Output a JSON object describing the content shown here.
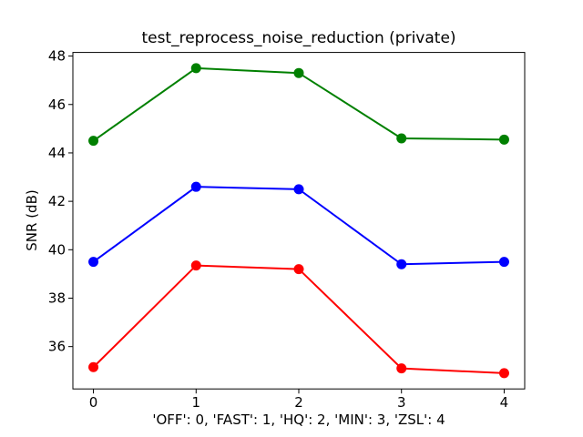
{
  "figure": {
    "background": "#ffffff",
    "frame_color": "#000000"
  },
  "chart_data": {
    "type": "line",
    "title": "test_reprocess_noise_reduction (private)",
    "xlabel": "'OFF': 0, 'FAST': 1, 'HQ': 2, 'MIN': 3, 'ZSL': 4",
    "ylabel": "SNR (dB)",
    "x": [
      0,
      1,
      2,
      3,
      4
    ],
    "x_tick_labels": [
      "0",
      "1",
      "2",
      "3",
      "4"
    ],
    "y_ticks": [
      36,
      38,
      40,
      42,
      44,
      46,
      48
    ],
    "xlim": [
      -0.2,
      4.2
    ],
    "ylim": [
      34.25,
      48.15
    ],
    "grid": false,
    "legend": "none",
    "series": [
      {
        "name": "green",
        "color": "#008000",
        "marker": "o",
        "values": [
          44.5,
          47.5,
          47.3,
          44.6,
          44.55
        ]
      },
      {
        "name": "blue",
        "color": "#0000ff",
        "marker": "o",
        "values": [
          39.5,
          42.6,
          42.5,
          39.4,
          39.5
        ]
      },
      {
        "name": "red",
        "color": "#ff0000",
        "marker": "o",
        "values": [
          35.15,
          39.35,
          39.2,
          35.1,
          34.9
        ]
      }
    ]
  }
}
